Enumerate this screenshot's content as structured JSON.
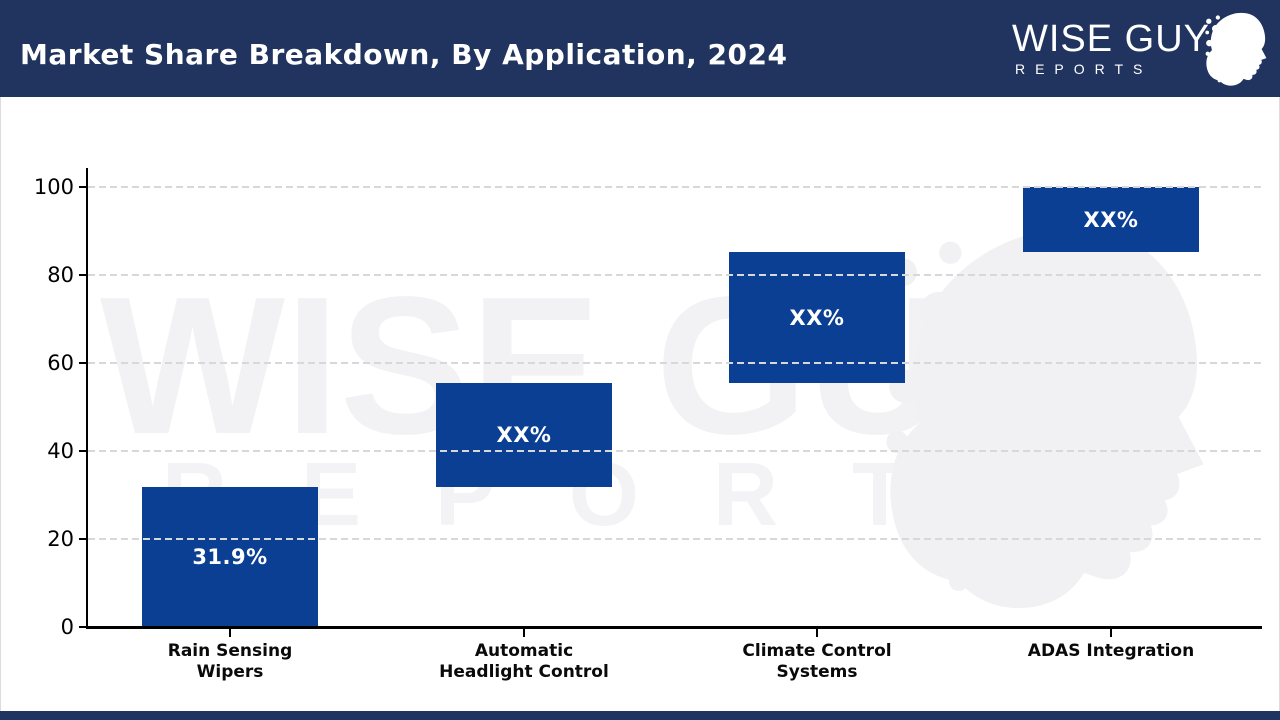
{
  "header": {
    "title": "Market Share Breakdown, By Application, 2024",
    "logo": {
      "brand": "WISE GUY",
      "sub": "REPORTS"
    }
  },
  "watermark": {
    "brand": "WISE GUY",
    "sub": "REPORTS"
  },
  "chart_data": {
    "type": "bar",
    "subtype": "floating-waterfall",
    "title": "Market Share Breakdown, By Application, 2024",
    "categories": [
      "Rain Sensing Wipers",
      "Automatic Headlight Control",
      "Climate Control Systems",
      "ADAS Integration"
    ],
    "xtick_lines": [
      [
        "Rain Sensing",
        "Wipers"
      ],
      [
        "Automatic",
        "Headlight Control"
      ],
      [
        "Climate Control",
        "Systems"
      ],
      [
        "ADAS Integration"
      ]
    ],
    "segments": [
      {
        "category": "Rain Sensing Wipers",
        "start": 0,
        "end": 31.9,
        "value": 31.9,
        "label": "31.9%"
      },
      {
        "category": "Automatic Headlight Control",
        "start": 31.9,
        "end": 55.4,
        "value": 23.5,
        "label": "XX%"
      },
      {
        "category": "Climate Control Systems",
        "start": 55.4,
        "end": 85.2,
        "value": 29.8,
        "label": "XX%"
      },
      {
        "category": "ADAS Integration",
        "start": 85.2,
        "end": 100,
        "value": 14.8,
        "label": "XX%"
      }
    ],
    "ylim": [
      0,
      100
    ],
    "yticks": [
      0,
      20,
      40,
      60,
      80,
      100
    ],
    "grid": {
      "axis": "y",
      "style": "dashed",
      "color": "#d8d8d8"
    },
    "legend": false,
    "colors": {
      "bar": "#0a3f94",
      "value_label": "#ffffff",
      "axis": "#000000",
      "tick_label": "#000000",
      "header_bg": "#20345f",
      "watermark": "#f2f2f5"
    }
  }
}
